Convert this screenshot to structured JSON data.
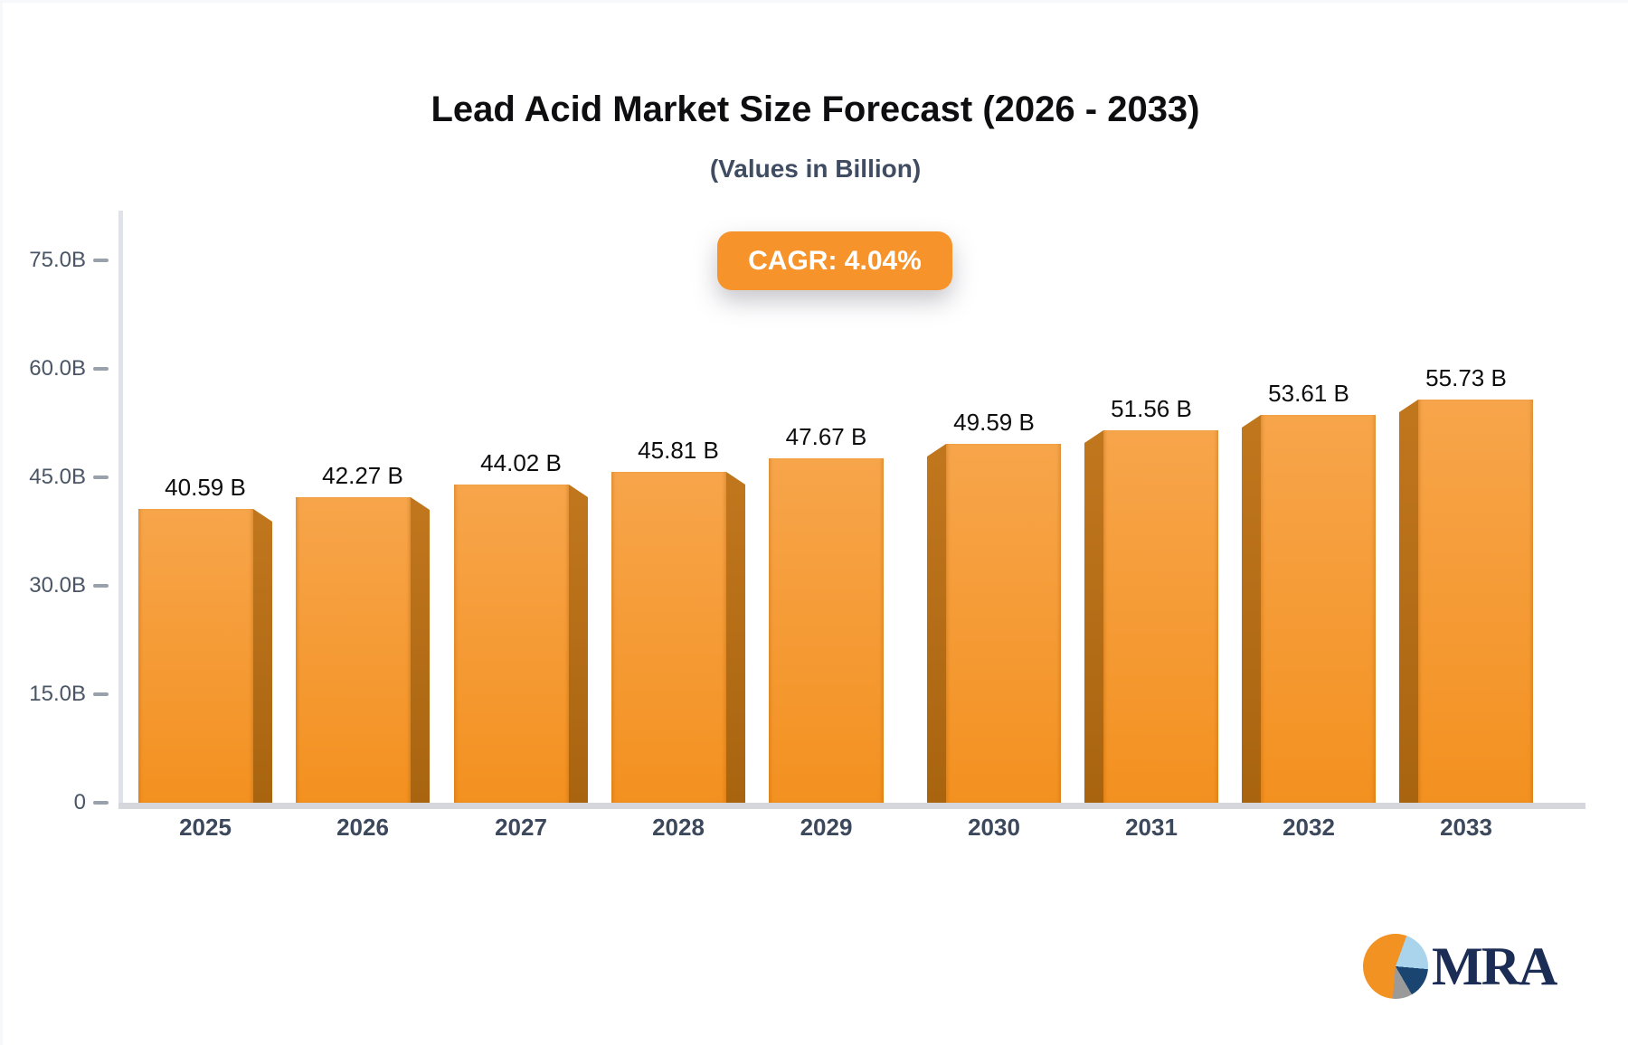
{
  "header": {
    "title": "Lead Acid Market Size Forecast (2026 - 2033)",
    "subtitle": "(Values in Billion)",
    "cagr_badge": "CAGR: 4.04%",
    "badge_color": "#f6932a"
  },
  "chart_data": {
    "type": "bar",
    "title": "Lead Acid Market Size Forecast (2026 - 2033)",
    "subtitle": "(Values in Billion)",
    "cagr": "CAGR: 4.04%",
    "categories": [
      "2025",
      "2026",
      "2027",
      "2028",
      "2029",
      "2030",
      "2031",
      "2032",
      "2033"
    ],
    "values": [
      40.59,
      42.27,
      44.02,
      45.81,
      47.67,
      49.59,
      51.56,
      53.61,
      55.73
    ],
    "value_labels": [
      "40.59 B",
      "42.27 B",
      "44.02 B",
      "45.81 B",
      "47.67 B",
      "49.59 B",
      "51.56 B",
      "53.61 B",
      "55.73 B"
    ],
    "y_ticks": [
      {
        "value": 0,
        "label": "0"
      },
      {
        "value": 15,
        "label": "15.0B"
      },
      {
        "value": 30,
        "label": "30.0B"
      },
      {
        "value": 45,
        "label": "45.0B"
      },
      {
        "value": 60,
        "label": "60.0B"
      },
      {
        "value": 75,
        "label": "75.0B"
      }
    ],
    "ylim": [
      0,
      75
    ],
    "xlabel": "",
    "ylabel": "",
    "grid": false,
    "legend": false,
    "style": "3d-perspective-bars",
    "colors": {
      "bar_face_top": "#f7a54b",
      "bar_face_bottom": "#f39120",
      "bar_side_top": "#c0761d",
      "bar_side_bottom": "#a96410",
      "axis_line": "#e0e2e9",
      "baseline": "#d6d7dc"
    }
  },
  "logo": {
    "text": "MRA",
    "text_color": "#1b2c55",
    "pie_colors": {
      "orange": "#f29222",
      "light_blue": "#a9d4eb",
      "navy": "#1a4571",
      "gray": "#9a9a9a"
    }
  }
}
